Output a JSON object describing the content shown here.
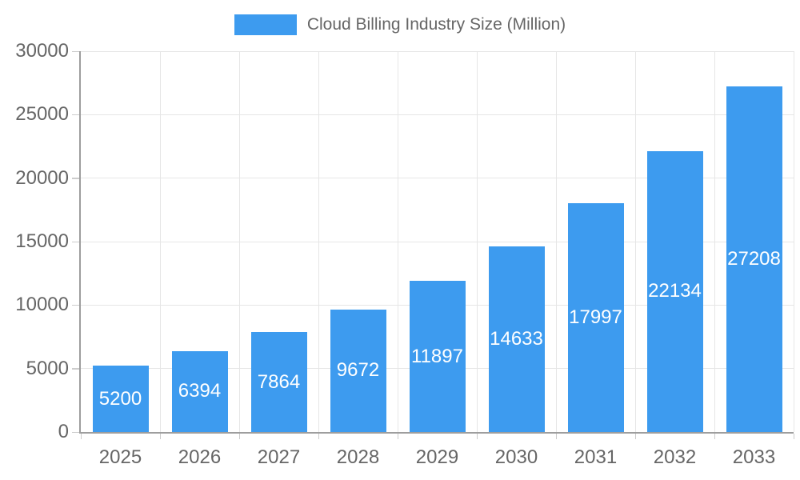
{
  "chart_data": {
    "type": "bar",
    "title": "Cloud Billing Industry Size (Million)",
    "categories": [
      "2025",
      "2026",
      "2027",
      "2028",
      "2029",
      "2030",
      "2031",
      "2032",
      "2033"
    ],
    "values": [
      5200,
      6394,
      7864,
      9672,
      11897,
      14633,
      17997,
      22134,
      27208
    ],
    "xlabel": "",
    "ylabel": "",
    "ylim": [
      0,
      30000
    ],
    "yticks": [
      0,
      5000,
      10000,
      15000,
      20000,
      25000,
      30000
    ],
    "grid": true,
    "legend_position": "top",
    "value_label_position": "inside-center",
    "colors": {
      "bar": "#3D9BEF",
      "grid": "#e6e6e6",
      "axis": "#9e9e9e",
      "tick": "#cccccc",
      "tick_label": "#666666",
      "legend_text": "#666666",
      "value_label": "#ffffff",
      "background": "#ffffff"
    }
  }
}
